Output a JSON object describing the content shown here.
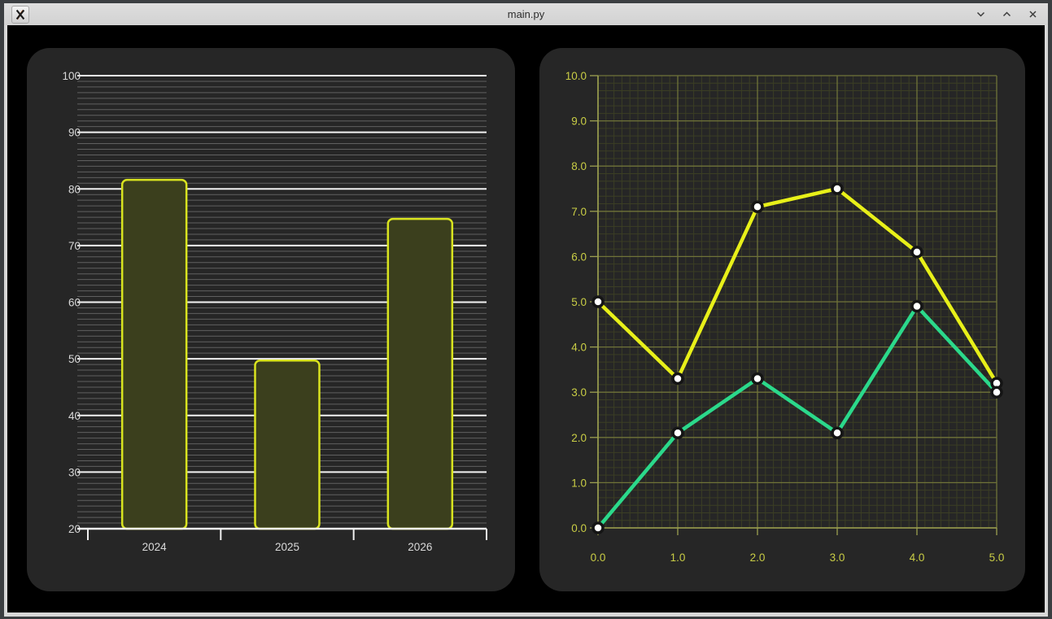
{
  "window": {
    "title": "main.py",
    "icons": {
      "app": "x11-logo-icon",
      "minimize": "chevron-down-icon",
      "maximize": "chevron-up-icon",
      "close": "close-icon"
    }
  },
  "theme": {
    "desktop_border": "#3b3e41",
    "titlebar_bg": "#d8d8d8",
    "titlebar_text": "#2e2e2e",
    "content_bg": "#000000",
    "panel_bg": "#262626"
  },
  "chart_data": [
    {
      "type": "bar",
      "title": "",
      "xlabel": "",
      "ylabel": "",
      "categories": [
        "2024",
        "2025",
        "2026"
      ],
      "values": [
        81.6,
        49.7,
        74.7
      ],
      "ylim": [
        20,
        100
      ],
      "y_ticks": [
        20,
        30,
        40,
        50,
        60,
        70,
        80,
        90,
        100
      ],
      "y_tick_labels": [
        "20",
        "30",
        "40",
        "50",
        "60",
        "70",
        "80",
        "90",
        "100"
      ],
      "grid": "horizontal, major every 10 (white) + minor every 1 (gray), no legend",
      "colors": {
        "bar_fill": "#3b3f1d",
        "bar_stroke": "#d9e41f",
        "grid_major": "#f2f2f2",
        "grid_minor": "#9a9a9a",
        "axis": "#f0f0f0",
        "tick_label": "#d9d9d9"
      }
    },
    {
      "type": "line",
      "title": "",
      "xlabel": "",
      "ylabel": "",
      "x": [
        0,
        1,
        2,
        3,
        4,
        5
      ],
      "series": [
        {
          "name": "yellow-series",
          "color": "#e8f019",
          "values": [
            5.0,
            3.3,
            7.1,
            7.5,
            6.1,
            3.2
          ]
        },
        {
          "name": "green-series",
          "color": "#2bd98b",
          "values": [
            0.0,
            2.1,
            3.3,
            2.1,
            4.9,
            3.0
          ]
        }
      ],
      "xlim": [
        0,
        5
      ],
      "ylim": [
        0,
        10
      ],
      "x_ticks": [
        0,
        1,
        2,
        3,
        4,
        5
      ],
      "x_tick_labels": [
        "0.0",
        "1.0",
        "2.0",
        "3.0",
        "4.0",
        "5.0"
      ],
      "y_ticks": [
        0,
        1,
        2,
        3,
        4,
        5,
        6,
        7,
        8,
        9,
        10
      ],
      "y_tick_labels": [
        "0.0",
        "1.0",
        "2.0",
        "3.0",
        "4.0",
        "5.0",
        "6.0",
        "7.0",
        "8.0",
        "9.0",
        "10.0"
      ],
      "grid": "mesh, olive major per 1.0 + fine minor grid, no legend, circular white markers",
      "colors": {
        "grid_major": "#6f7339",
        "grid_minor": "#3b3e24",
        "axis": "#9ca050",
        "tick_label": "#c9cd45",
        "marker_fill": "#ffffff",
        "marker_stroke": "#141414"
      }
    }
  ]
}
